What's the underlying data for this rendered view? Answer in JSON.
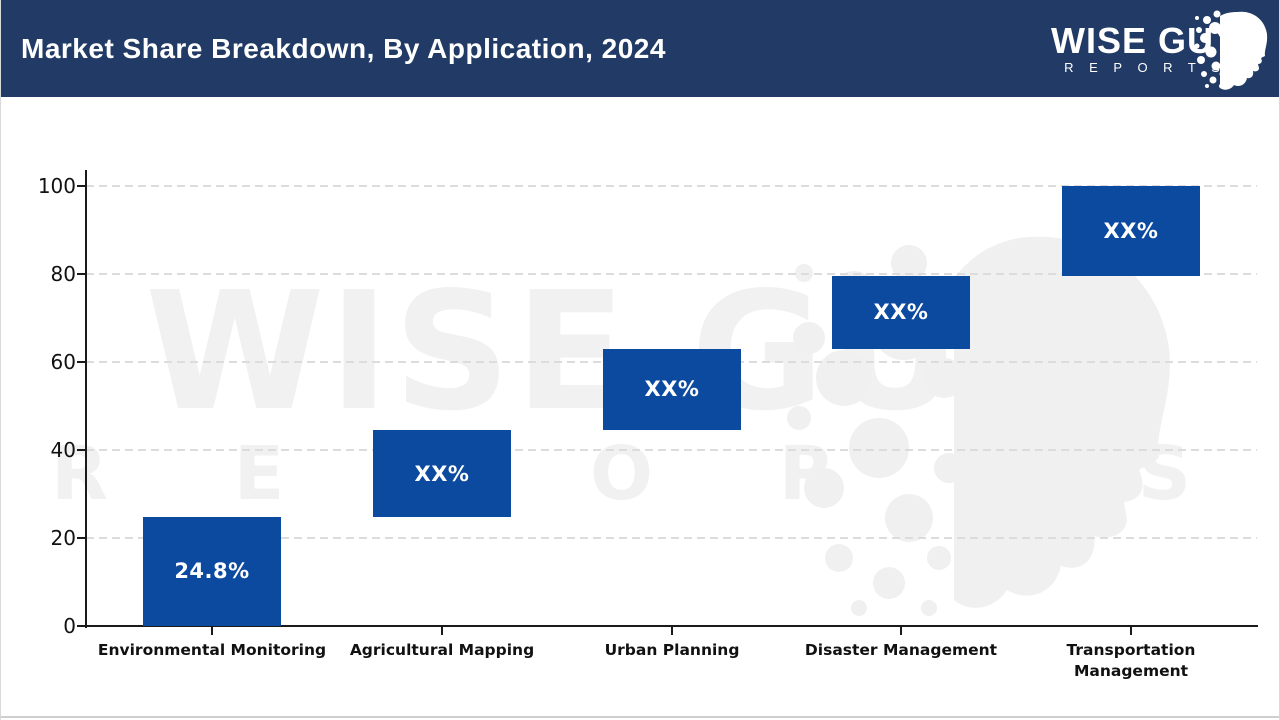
{
  "header": {
    "title": "Market Share Breakdown, By Application, 2024",
    "logo": {
      "line1": "WISE GUY",
      "line2": "R E P O R T S"
    }
  },
  "watermark": {
    "line1": "WISE GUY",
    "line2": "R E P O R T S"
  },
  "colors": {
    "header_bg": "#213a66",
    "bar": "#0c4aa0",
    "gridline": "#dcdcdc",
    "axis": "#1a1a1a",
    "bar_label": "#ffffff",
    "watermark": "#f1f1f1"
  },
  "chart_data": {
    "type": "bar",
    "subtype": "waterfall",
    "title": "Market Share Breakdown, By Application, 2024",
    "categories": [
      "Environmental Monitoring",
      "Agricultural Mapping",
      "Urban Planning",
      "Disaster Management",
      "Transportation Management"
    ],
    "bars": [
      {
        "category": "Environmental Monitoring",
        "start": 0,
        "end": 24.8,
        "label": "24.8%"
      },
      {
        "category": "Agricultural Mapping",
        "start": 24.8,
        "end": 44.5,
        "label": "XX%"
      },
      {
        "category": "Urban Planning",
        "start": 44.5,
        "end": 63,
        "label": "XX%"
      },
      {
        "category": "Disaster Management",
        "start": 63,
        "end": 79.5,
        "label": "XX%"
      },
      {
        "category": "Transportation Management",
        "start": 79.5,
        "end": 100,
        "label": "XX%"
      }
    ],
    "xlabel": "",
    "ylabel": "",
    "ylim": [
      0,
      100
    ],
    "yticks": [
      0,
      20,
      40,
      60,
      80,
      100
    ],
    "grid": "dashed-horizontal",
    "legend": "none"
  }
}
